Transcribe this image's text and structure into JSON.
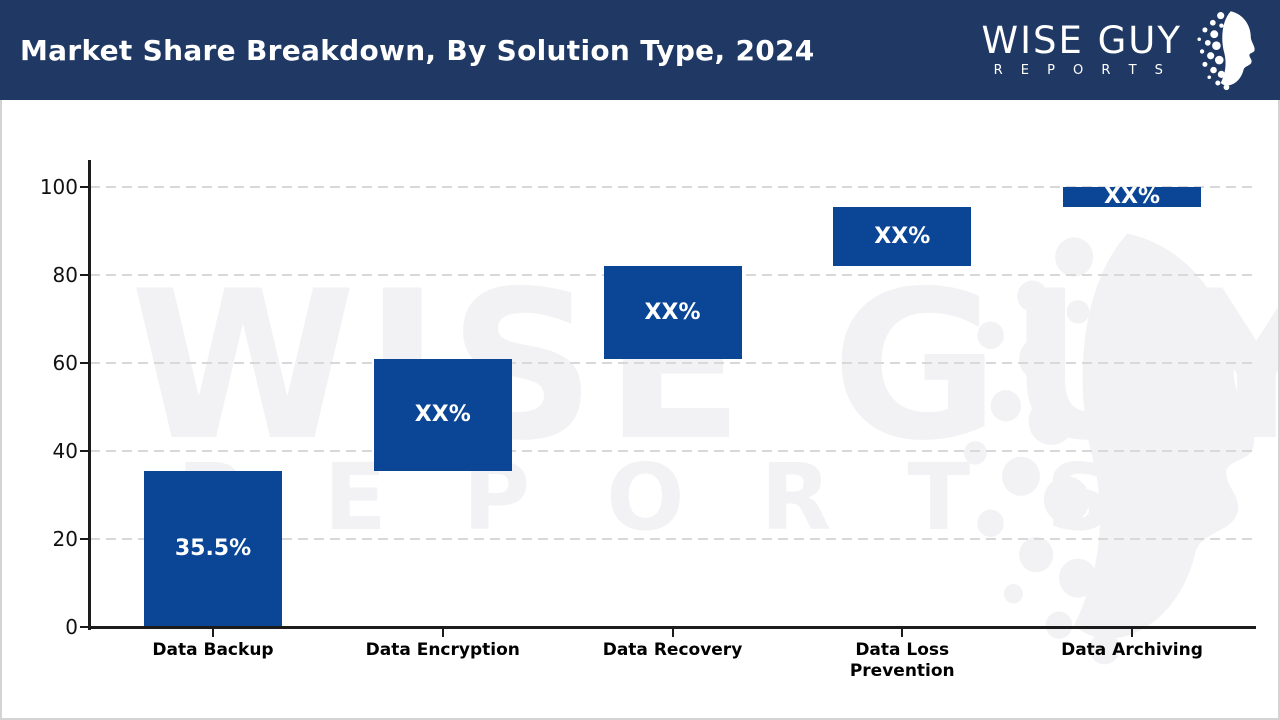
{
  "header": {
    "title": "Market Share Breakdown, By Solution Type, 2024",
    "brand": {
      "name": "WISE GUY",
      "tagline": "R E P O R T S"
    }
  },
  "watermark": {
    "name": "WISE GUY",
    "tagline": "R E P O R T S"
  },
  "colors": {
    "header_bg": "#203864",
    "header_text": "#ffffff",
    "background": "#ffffff",
    "bar": "#0a4596",
    "bar_label": "#ffffff",
    "axis": "#1c1c1c",
    "tick_label": "#111111",
    "grid": "#d8d8d8",
    "watermark": "#f2f2f4",
    "frame_border": "#d4d4d4"
  },
  "chart_data": {
    "type": "bar",
    "variant": "waterfall",
    "title": "Market Share Breakdown, By Solution Type, 2024",
    "categories": [
      "Data Backup",
      "Data Encryption",
      "Data Recovery",
      "Data Loss Prevention",
      "Data Archiving"
    ],
    "bars": [
      {
        "category": "Data Backup",
        "start": 0,
        "end": 35.5,
        "label": "35.5%"
      },
      {
        "category": "Data Encryption",
        "start": 35.5,
        "end": 61,
        "label": "XX%"
      },
      {
        "category": "Data Recovery",
        "start": 61,
        "end": 82,
        "label": "XX%"
      },
      {
        "category": "Data Loss Prevention",
        "start": 82,
        "end": 95.5,
        "label": "XX%"
      },
      {
        "category": "Data Archiving",
        "start": 95.5,
        "end": 100,
        "label": "XX%"
      }
    ],
    "yticks": [
      0,
      20,
      40,
      60,
      80,
      100
    ],
    "ylim": [
      0,
      107
    ],
    "xlabel": "",
    "ylabel": "",
    "grid": "horizontal-dashed",
    "legend": "none"
  }
}
